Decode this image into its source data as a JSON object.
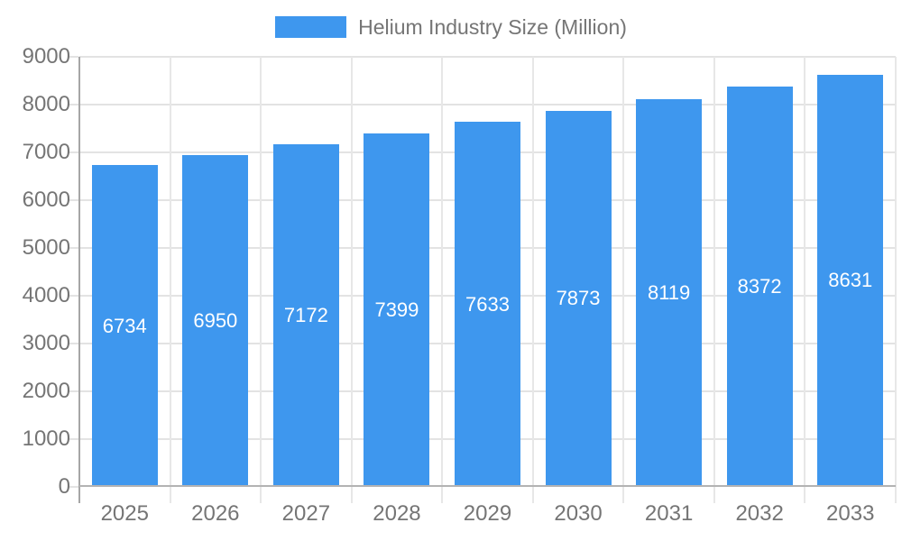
{
  "chart_data": {
    "type": "bar",
    "title": "",
    "legend": "Helium Industry Size (Million)",
    "legend_position": "top",
    "categories": [
      "2025",
      "2026",
      "2027",
      "2028",
      "2029",
      "2030",
      "2031",
      "2032",
      "2033"
    ],
    "values": [
      6734,
      6950,
      7172,
      7399,
      7633,
      7873,
      8119,
      8372,
      8631
    ],
    "xlabel": "",
    "ylabel": "",
    "ylim": [
      0,
      9000
    ],
    "y_ticks": [
      0,
      1000,
      2000,
      3000,
      4000,
      5000,
      6000,
      7000,
      8000,
      9000
    ],
    "grid": true,
    "bar_labels_visible": true,
    "colors": {
      "bar": "#3e97ee",
      "bar_label": "#ffffff",
      "axis_text": "#757575",
      "gridline": "#e3e3e3",
      "axis_line": "#a6a6a6",
      "baseline": "#b3b3b3",
      "background": "#ffffff"
    }
  }
}
